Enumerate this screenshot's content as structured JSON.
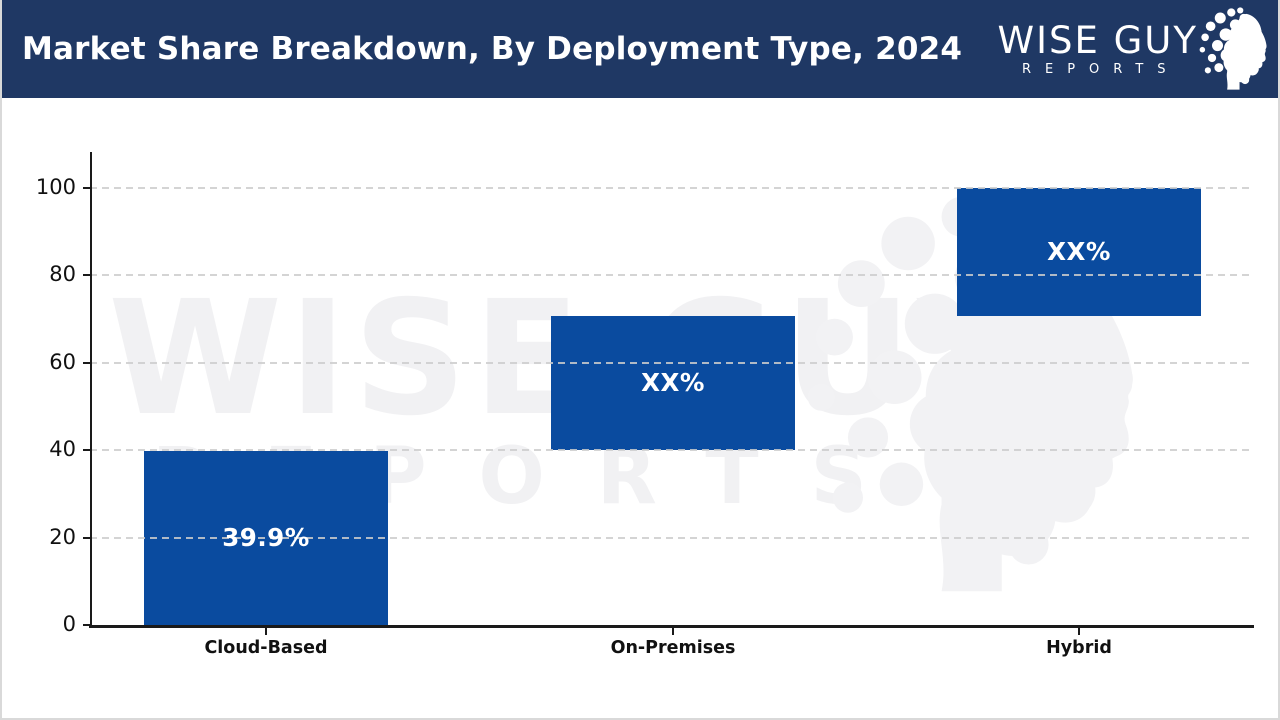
{
  "header": {
    "title": "Market Share Breakdown, By Deployment Type, 2024",
    "logo_line1": "WISE GUY",
    "logo_line2": "REPORTS"
  },
  "watermark": {
    "line1": "WISE GUY",
    "line2": "REPORTS"
  },
  "chart_data": {
    "type": "bar",
    "subtype": "waterfall",
    "title": "Market Share Breakdown, By Deployment Type, 2024",
    "categories": [
      "Cloud-Based",
      "On-Premises",
      "Hybrid"
    ],
    "bars": [
      {
        "category": "Cloud-Based",
        "start": 0,
        "end": 39.9,
        "label": "39.9%"
      },
      {
        "category": "On-Premises",
        "start": 40,
        "end": 70.8,
        "label": "XX%"
      },
      {
        "category": "Hybrid",
        "start": 70.8,
        "end": 100,
        "label": "XX%"
      }
    ],
    "yticks": [
      0,
      20,
      40,
      60,
      80,
      100
    ],
    "ylim": [
      0,
      108
    ],
    "xlabel": "",
    "ylabel": "",
    "grid": "horizontal-dashed-over-bars",
    "legend": "none",
    "bar_color": "#0a4b9f",
    "bar_label_color": "#ffffff"
  },
  "colors": {
    "header_bg": "#1f3864",
    "bar": "#0a4b9f",
    "grid": "#cdcdcd",
    "axis": "#1a1a1a",
    "watermark": "#f1f1f3",
    "page_border": "#d9d9d9"
  }
}
